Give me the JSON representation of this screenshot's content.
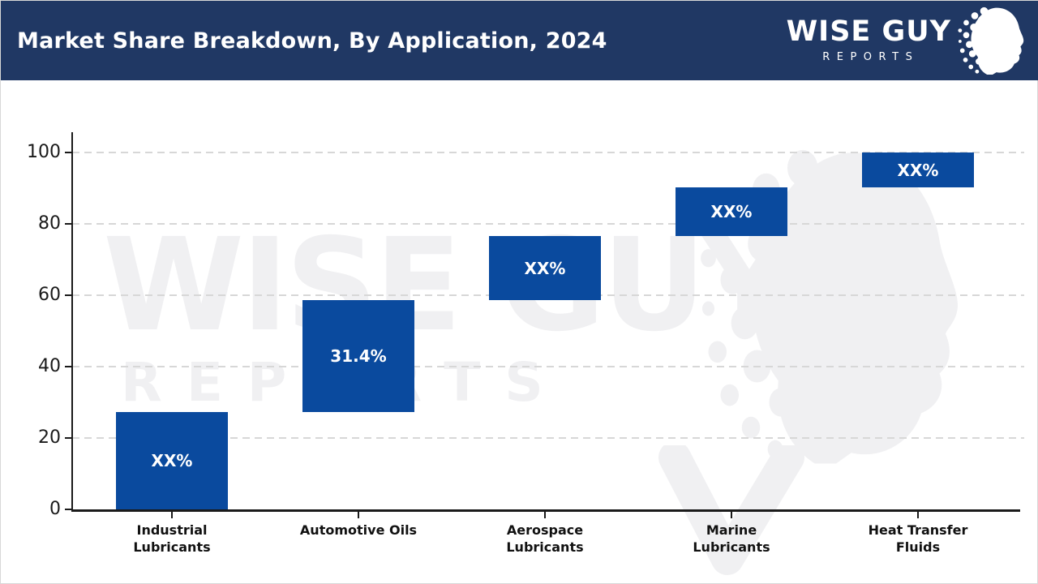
{
  "header": {
    "title": "Market Share Breakdown, By Application, 2024",
    "logo": {
      "name_line": "WISE GUY",
      "sub_line": "REPORTS"
    }
  },
  "watermark": {
    "name_line": "WISE GUY",
    "sub_line": "REPORTS"
  },
  "chart_data": {
    "type": "bar",
    "subtype": "waterfall",
    "title": "Market Share Breakdown, By Application, 2024",
    "categories": [
      "Industrial Lubricants",
      "Automotive Oils",
      "Aerospace Lubricants",
      "Marine Lubricants",
      "Heat Transfer Fluids"
    ],
    "segments": [
      {
        "category": "Industrial Lubricants",
        "start": 0,
        "end": 27.2,
        "label": "XX%"
      },
      {
        "category": "Automotive Oils",
        "start": 27.2,
        "end": 58.6,
        "label": "31.4%"
      },
      {
        "category": "Aerospace Lubricants",
        "start": 58.6,
        "end": 76.6,
        "label": "XX%"
      },
      {
        "category": "Marine Lubricants",
        "start": 76.6,
        "end": 90.2,
        "label": "XX%"
      },
      {
        "category": "Heat Transfer Fluids",
        "start": 90.2,
        "end": 100,
        "label": "XX%"
      }
    ],
    "yticks": [
      0,
      20,
      40,
      60,
      80,
      100
    ],
    "ylim": [
      0,
      100
    ],
    "xlabel": "",
    "ylabel": "",
    "legend": "none",
    "grid": "horizontal-dashed",
    "colors": {
      "bar": "#0a4a9e",
      "header_bg": "#203864",
      "grid": "#d7d7d7",
      "watermark": "#f0f0f2",
      "axis": "#1a1a1a",
      "bar_label": "#ffffff"
    }
  }
}
